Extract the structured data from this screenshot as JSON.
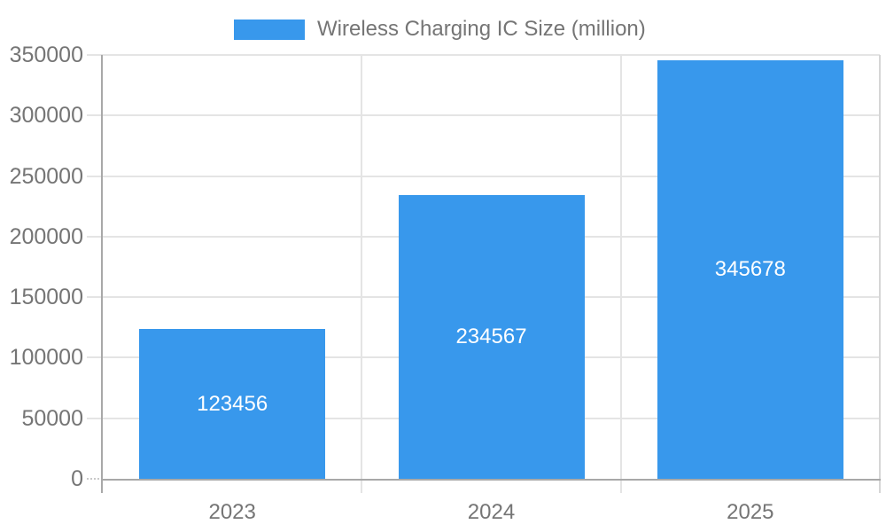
{
  "chart_data": {
    "type": "bar",
    "title": "",
    "categories": [
      "2023",
      "2024",
      "2025"
    ],
    "series": [
      {
        "name": "Wireless Charging IC Size (million)",
        "values": [
          123456,
          234567,
          345678
        ],
        "color": "#3898EC"
      }
    ],
    "bar_value_labels": [
      "123456",
      "234567",
      "345678"
    ],
    "xlabel": "",
    "ylabel": "",
    "ylim": [
      0,
      350000
    ],
    "ytick_interval": 50000,
    "ytick_labels": [
      "0",
      "50000",
      "100000",
      "150000",
      "200000",
      "250000",
      "300000",
      "350000"
    ],
    "grid": true,
    "legend_position": "top"
  },
  "colors": {
    "bar": "#3898EC",
    "grid": "#e4e4e4",
    "axis_line": "#a8a8a8",
    "plot_border": "#d6d6d6",
    "zero_tick": "#c9c9c9",
    "tick_label": "#757575",
    "bar_label_text": "#ffffff",
    "background": "#ffffff"
  }
}
